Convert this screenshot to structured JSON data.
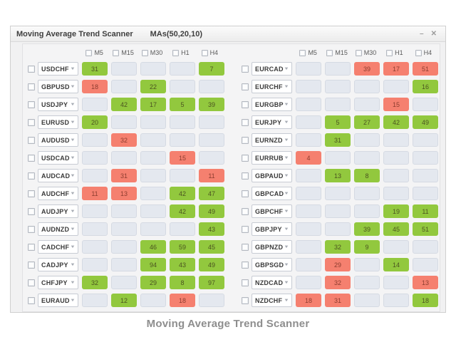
{
  "window": {
    "title": "Moving Average Trend Scanner",
    "params": "MAs(50,20,10)",
    "minimize": "–",
    "close": "✕"
  },
  "caption": "Moving Average Trend Scanner",
  "timeframes": [
    "M5",
    "M15",
    "M30",
    "H1",
    "H4"
  ],
  "colors": {
    "up": "#92c83e",
    "down": "#f5806f",
    "empty": "#e4e8ef",
    "up_text": "#4b5420",
    "down_text": "#8c3c2f"
  },
  "groups": [
    {
      "rows": [
        {
          "pair": "USDCHF",
          "cells": [
            {
              "v": 31,
              "t": "up"
            },
            null,
            null,
            null,
            {
              "v": 7,
              "t": "up"
            }
          ]
        },
        {
          "pair": "GBPUSD",
          "cells": [
            {
              "v": 18,
              "t": "down"
            },
            null,
            {
              "v": 22,
              "t": "up"
            },
            null,
            null
          ]
        },
        {
          "pair": "USDJPY",
          "cells": [
            null,
            {
              "v": 42,
              "t": "up"
            },
            {
              "v": 17,
              "t": "up"
            },
            {
              "v": 5,
              "t": "up"
            },
            {
              "v": 39,
              "t": "up"
            }
          ]
        },
        {
          "pair": "EURUSD",
          "cells": [
            {
              "v": 20,
              "t": "up"
            },
            null,
            null,
            null,
            null
          ]
        },
        {
          "pair": "AUDUSD",
          "cells": [
            null,
            {
              "v": 32,
              "t": "down"
            },
            null,
            null,
            null
          ]
        },
        {
          "pair": "USDCAD",
          "cells": [
            null,
            null,
            null,
            {
              "v": 15,
              "t": "down"
            },
            null
          ]
        },
        {
          "pair": "AUDCAD",
          "cells": [
            null,
            {
              "v": 31,
              "t": "down"
            },
            null,
            null,
            {
              "v": 11,
              "t": "down"
            }
          ]
        },
        {
          "pair": "AUDCHF",
          "cells": [
            {
              "v": 11,
              "t": "down"
            },
            {
              "v": 13,
              "t": "down"
            },
            null,
            {
              "v": 42,
              "t": "up"
            },
            {
              "v": 47,
              "t": "up"
            }
          ]
        },
        {
          "pair": "AUDJPY",
          "cells": [
            null,
            null,
            null,
            {
              "v": 42,
              "t": "up"
            },
            {
              "v": 49,
              "t": "up"
            }
          ]
        },
        {
          "pair": "AUDNZD",
          "cells": [
            null,
            null,
            null,
            null,
            {
              "v": 43,
              "t": "up"
            }
          ]
        },
        {
          "pair": "CADCHF",
          "cells": [
            null,
            null,
            {
              "v": 46,
              "t": "up"
            },
            {
              "v": 59,
              "t": "up"
            },
            {
              "v": 45,
              "t": "up"
            }
          ]
        },
        {
          "pair": "CADJPY",
          "cells": [
            null,
            null,
            {
              "v": 94,
              "t": "up"
            },
            {
              "v": 43,
              "t": "up"
            },
            {
              "v": 49,
              "t": "up"
            }
          ]
        },
        {
          "pair": "CHFJPY",
          "cells": [
            {
              "v": 32,
              "t": "up"
            },
            null,
            {
              "v": 29,
              "t": "up"
            },
            {
              "v": 8,
              "t": "up"
            },
            {
              "v": 97,
              "t": "up"
            }
          ]
        },
        {
          "pair": "EURAUD",
          "cells": [
            null,
            {
              "v": 12,
              "t": "up"
            },
            null,
            {
              "v": 18,
              "t": "down"
            },
            null
          ]
        }
      ]
    },
    {
      "rows": [
        {
          "pair": "EURCAD",
          "cells": [
            null,
            null,
            {
              "v": 39,
              "t": "down"
            },
            {
              "v": 17,
              "t": "down"
            },
            {
              "v": 51,
              "t": "down"
            }
          ]
        },
        {
          "pair": "EURCHF",
          "cells": [
            null,
            null,
            null,
            null,
            {
              "v": 16,
              "t": "up"
            }
          ]
        },
        {
          "pair": "EURGBP",
          "cells": [
            null,
            null,
            null,
            {
              "v": 15,
              "t": "down"
            },
            null
          ]
        },
        {
          "pair": "EURJPY",
          "cells": [
            null,
            {
              "v": 5,
              "t": "up"
            },
            {
              "v": 27,
              "t": "up"
            },
            {
              "v": 42,
              "t": "up"
            },
            {
              "v": 49,
              "t": "up"
            }
          ]
        },
        {
          "pair": "EURNZD",
          "cells": [
            null,
            {
              "v": 31,
              "t": "up"
            },
            null,
            null,
            null
          ]
        },
        {
          "pair": "EURRUB",
          "cells": [
            {
              "v": 4,
              "t": "down"
            },
            null,
            null,
            null,
            null
          ]
        },
        {
          "pair": "GBPAUD",
          "cells": [
            null,
            {
              "v": 13,
              "t": "up"
            },
            {
              "v": 8,
              "t": "up"
            },
            null,
            null
          ]
        },
        {
          "pair": "GBPCAD",
          "cells": [
            null,
            null,
            null,
            null,
            null
          ]
        },
        {
          "pair": "GBPCHF",
          "cells": [
            null,
            null,
            null,
            {
              "v": 19,
              "t": "up"
            },
            {
              "v": 11,
              "t": "up"
            }
          ]
        },
        {
          "pair": "GBPJPY",
          "cells": [
            null,
            null,
            {
              "v": 39,
              "t": "up"
            },
            {
              "v": 45,
              "t": "up"
            },
            {
              "v": 51,
              "t": "up"
            }
          ]
        },
        {
          "pair": "GBPNZD",
          "cells": [
            null,
            {
              "v": 32,
              "t": "up"
            },
            {
              "v": 9,
              "t": "up"
            },
            null,
            null
          ]
        },
        {
          "pair": "GBPSGD",
          "cells": [
            null,
            {
              "v": 29,
              "t": "down"
            },
            null,
            {
              "v": 14,
              "t": "up"
            },
            null
          ]
        },
        {
          "pair": "NZDCAD",
          "cells": [
            null,
            {
              "v": 32,
              "t": "down"
            },
            null,
            null,
            {
              "v": 13,
              "t": "down"
            }
          ]
        },
        {
          "pair": "NZDCHF",
          "cells": [
            {
              "v": 18,
              "t": "down"
            },
            {
              "v": 31,
              "t": "down"
            },
            null,
            null,
            {
              "v": 18,
              "t": "up"
            }
          ]
        }
      ]
    }
  ]
}
